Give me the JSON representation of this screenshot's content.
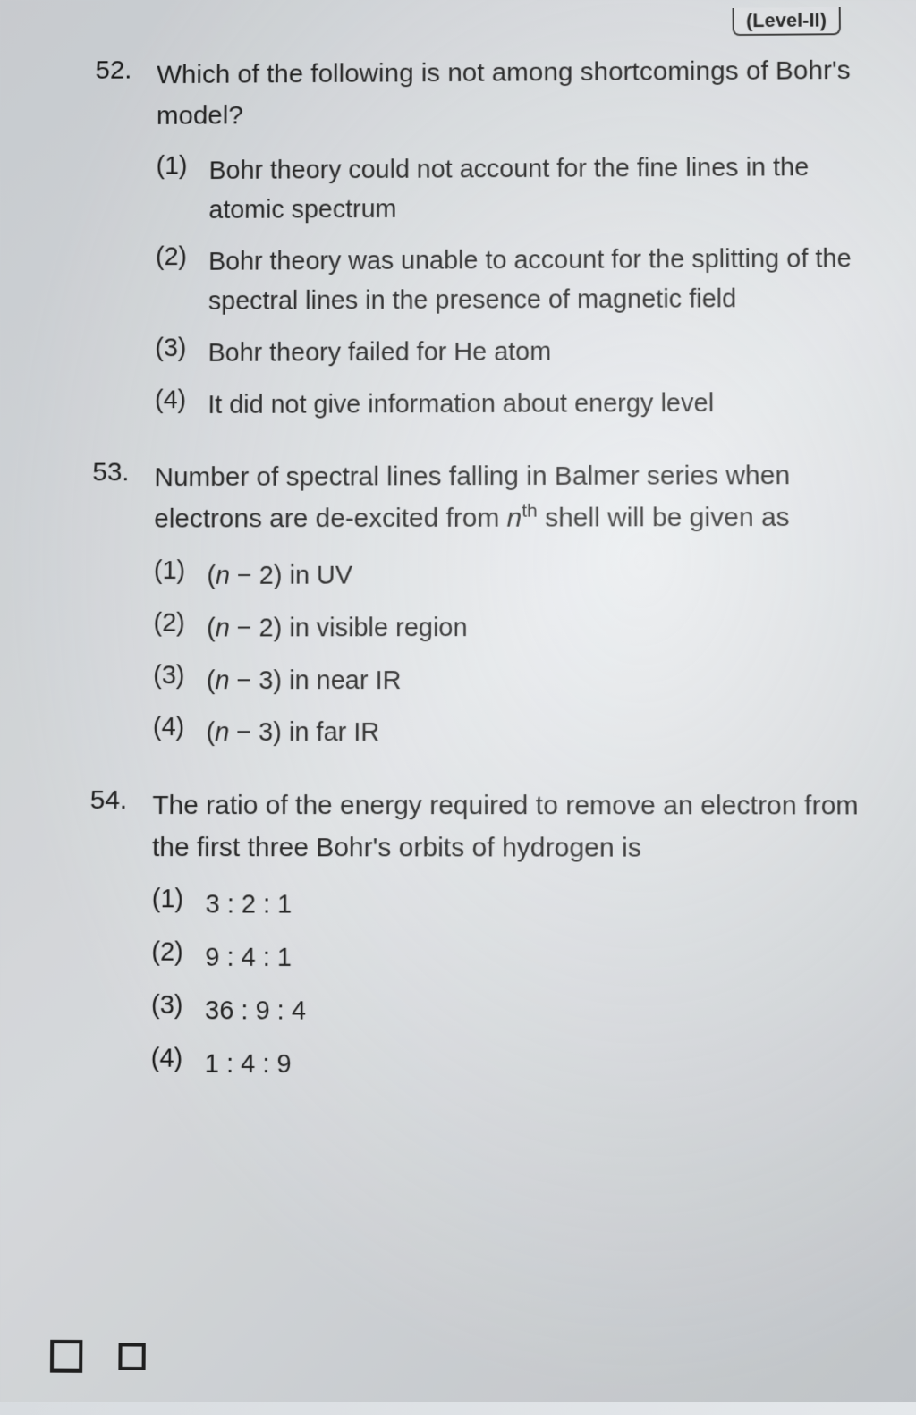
{
  "header_tag": "(Level-II)",
  "questions": [
    {
      "num": "52.",
      "text": "Which of the following is not among shortcomings of Bohr's model?",
      "options": [
        {
          "n": "(1)",
          "t": "Bohr theory could not account for the fine lines in the atomic spectrum"
        },
        {
          "n": "(2)",
          "t": "Bohr theory was unable to account for the splitting of the spectral lines in the presence of magnetic field"
        },
        {
          "n": "(3)",
          "t": "Bohr theory failed for He atom"
        },
        {
          "n": "(4)",
          "t": "It did not give information about energy level"
        }
      ]
    },
    {
      "num": "53.",
      "text_html": "Number of spectral lines falling in Balmer series when electrons are de-excited from <span class='italic'>n</span><span class='sup'>th</span> shell will be given as",
      "options": [
        {
          "n": "(1)",
          "t_html": "(<span class='italic'>n</span> − 2) in UV"
        },
        {
          "n": "(2)",
          "t_html": "(<span class='italic'>n</span> − 2) in visible region"
        },
        {
          "n": "(3)",
          "t_html": "(<span class='italic'>n</span> − 3) in near IR"
        },
        {
          "n": "(4)",
          "t_html": "(<span class='italic'>n</span> − 3) in far IR"
        }
      ]
    },
    {
      "num": "54.",
      "text": "The ratio of the energy required to remove an electron from the first three Bohr's orbits of hydrogen is",
      "options": [
        {
          "n": "(1)",
          "t": "3 : 2 : 1"
        },
        {
          "n": "(2)",
          "t": "9 : 4 : 1"
        },
        {
          "n": "(3)",
          "t": "36 : 9 : 4"
        },
        {
          "n": "(4)",
          "t": "1 : 4 : 9"
        }
      ]
    }
  ]
}
